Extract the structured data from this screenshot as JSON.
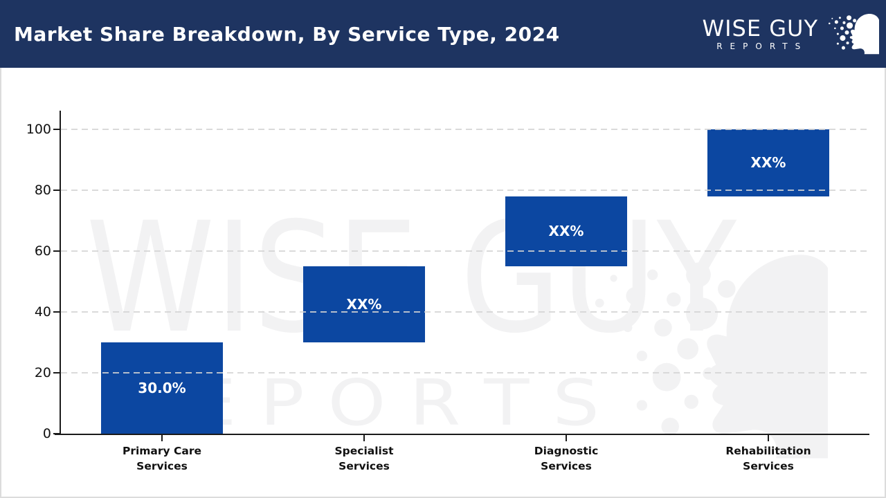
{
  "header": {
    "title": "Market Share Breakdown, By Service Type, 2024",
    "logo": {
      "wordmark": "WISE GUY",
      "subtext": "REPORTS"
    }
  },
  "watermark": {
    "line1": "WISE GUY",
    "line2": "R E P O R T S"
  },
  "colors": {
    "header_bg": "#1e3461",
    "bar_blue": "#0c47a1",
    "bar_label": "#ffffff",
    "watermark_gray": "#f2f2f3",
    "gridline": "#d4d4d4",
    "axis": "#1a1a1a",
    "frame_border": "#dcdcdc"
  },
  "chart_data": {
    "type": "bar",
    "variant": "waterfall",
    "title": "Market Share Breakdown, By Service Type, 2024",
    "categories": [
      "Primary Care\nServices",
      "Specialist\nServices",
      "Diagnostic\nServices",
      "Rehabilitation\nServices"
    ],
    "bars": [
      {
        "category": "Primary Care Services",
        "start": 0,
        "end": 30,
        "value": 30,
        "label": "30.0%"
      },
      {
        "category": "Specialist Services",
        "start": 30,
        "end": 55,
        "value": 25,
        "label": "XX%"
      },
      {
        "category": "Diagnostic Services",
        "start": 55,
        "end": 78,
        "value": 23,
        "label": "XX%"
      },
      {
        "category": "Rehabilitation Services",
        "start": 78,
        "end": 100,
        "value": 22,
        "label": "XX%"
      }
    ],
    "xlabel": "",
    "ylabel": "",
    "ylim": [
      0,
      100
    ],
    "yticks": [
      0,
      20,
      40,
      60,
      80,
      100
    ],
    "grid": {
      "horizontal": true,
      "style": "dashed",
      "drawn_over_bars": true
    },
    "legend": "none"
  }
}
